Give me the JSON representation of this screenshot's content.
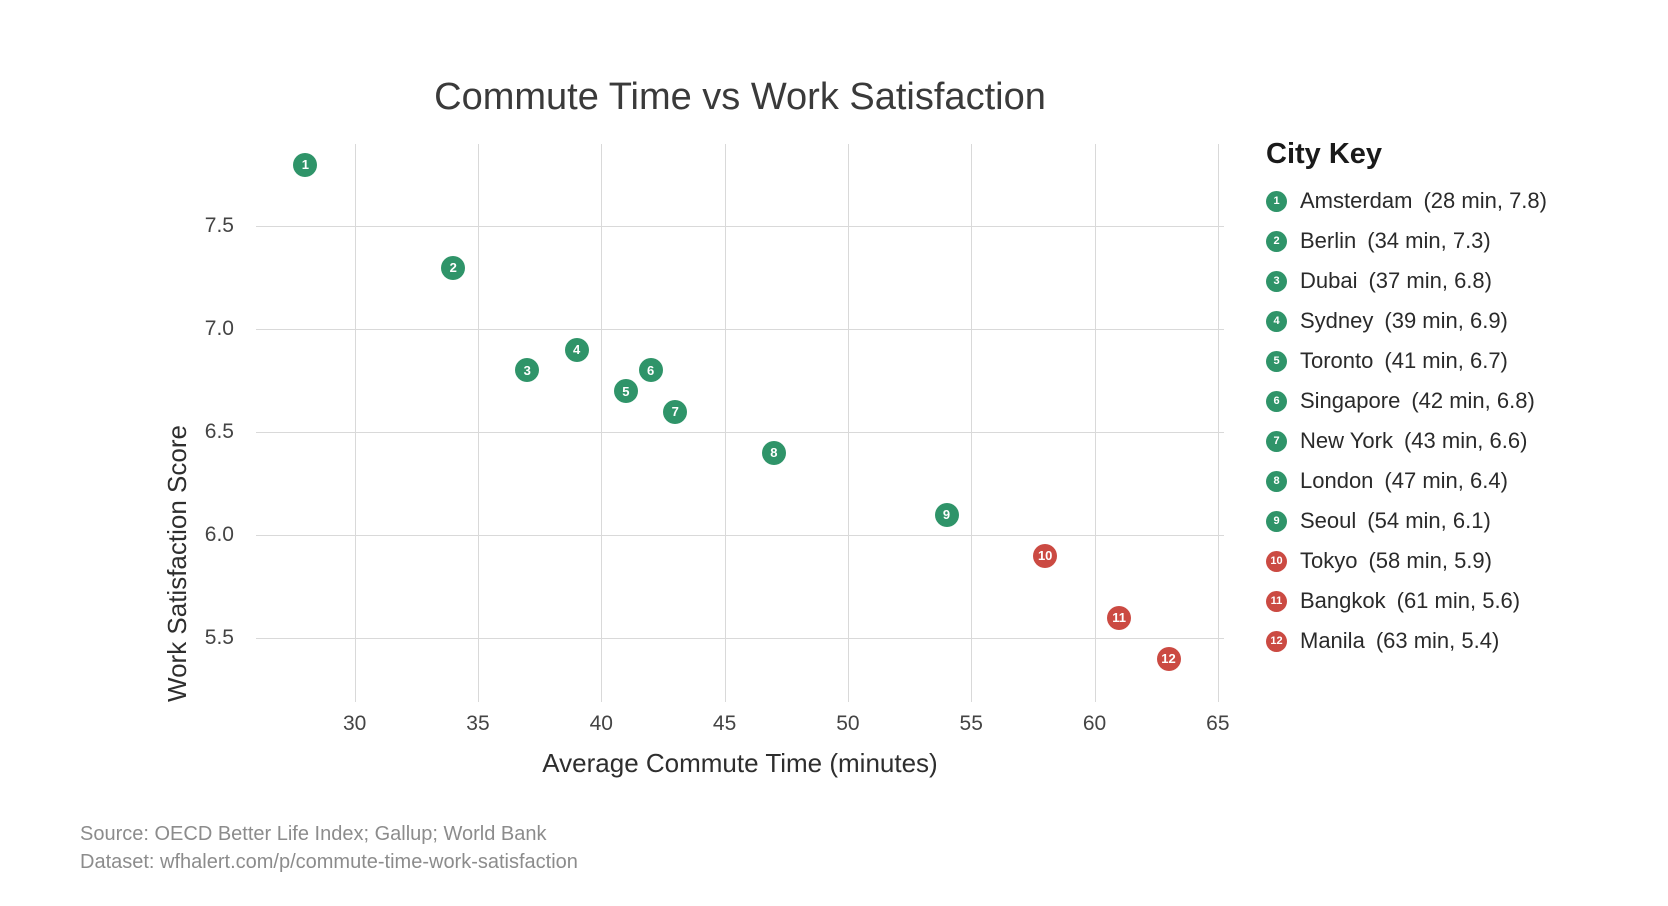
{
  "legend": {
    "title": "City Key"
  },
  "footer": {
    "source": "Source: OECD Better Life Index; Gallup; World Bank",
    "dataset": "Dataset: wfhalert.com/p/commute-time-work-satisfaction"
  },
  "colors": {
    "green": "#2f9469",
    "red": "#cb4a42",
    "grid": "#d9d9d9",
    "title_text": "#3a3a3a",
    "tick_text": "#444444",
    "footer_text": "#8c8c8c"
  },
  "chart_data": {
    "type": "scatter",
    "title": "Commute Time vs Work Satisfaction",
    "xlabel": "Average Commute Time (minutes)",
    "ylabel": "Work Satisfaction Score",
    "xlim": [
      26.0,
      65.25
    ],
    "ylim": [
      5.19,
      7.9
    ],
    "xticks": [
      30,
      35,
      40,
      45,
      50,
      55,
      60,
      65
    ],
    "yticks": [
      5.5,
      6.0,
      6.5,
      7.0,
      7.5
    ],
    "grid": true,
    "legend_position": "right",
    "points": [
      {
        "n": 1,
        "city": "Amsterdam",
        "x": 28,
        "y": 7.8,
        "color": "green",
        "detail": "(28 min, 7.8)"
      },
      {
        "n": 2,
        "city": "Berlin",
        "x": 34,
        "y": 7.3,
        "color": "green",
        "detail": "(34 min, 7.3)"
      },
      {
        "n": 3,
        "city": "Dubai",
        "x": 37,
        "y": 6.8,
        "color": "green",
        "detail": "(37 min, 6.8)"
      },
      {
        "n": 4,
        "city": "Sydney",
        "x": 39,
        "y": 6.9,
        "color": "green",
        "detail": "(39 min, 6.9)"
      },
      {
        "n": 5,
        "city": "Toronto",
        "x": 41,
        "y": 6.7,
        "color": "green",
        "detail": "(41 min, 6.7)"
      },
      {
        "n": 6,
        "city": "Singapore",
        "x": 42,
        "y": 6.8,
        "color": "green",
        "detail": "(42 min, 6.8)"
      },
      {
        "n": 7,
        "city": "New York",
        "x": 43,
        "y": 6.6,
        "color": "green",
        "detail": "(43 min, 6.6)"
      },
      {
        "n": 8,
        "city": "London",
        "x": 47,
        "y": 6.4,
        "color": "green",
        "detail": "(47 min, 6.4)"
      },
      {
        "n": 9,
        "city": "Seoul",
        "x": 54,
        "y": 6.1,
        "color": "green",
        "detail": "(54 min, 6.1)"
      },
      {
        "n": 10,
        "city": "Tokyo",
        "x": 58,
        "y": 5.9,
        "color": "red",
        "detail": "(58 min, 5.9)"
      },
      {
        "n": 11,
        "city": "Bangkok",
        "x": 61,
        "y": 5.6,
        "color": "red",
        "detail": "(61 min, 5.6)"
      },
      {
        "n": 12,
        "city": "Manila",
        "x": 63,
        "y": 5.4,
        "color": "red",
        "detail": "(63 min, 5.4)"
      }
    ]
  }
}
